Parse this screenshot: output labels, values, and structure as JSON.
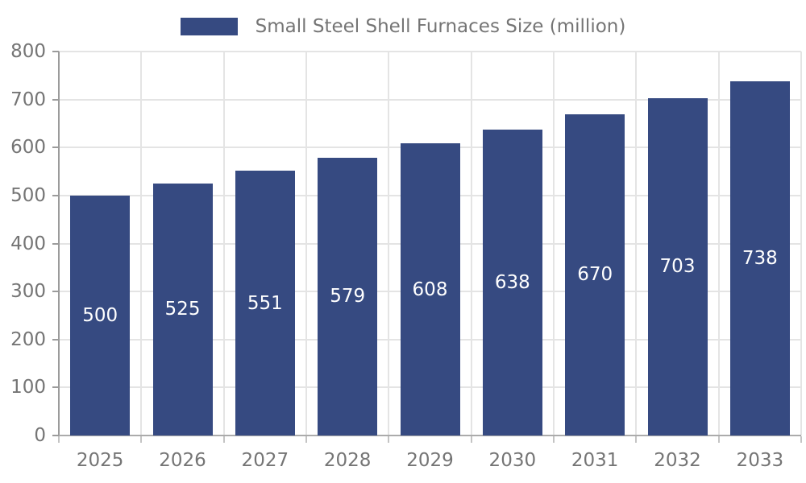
{
  "chart_data": {
    "type": "bar",
    "title": "Small Steel Shell Furnaces Size (million)",
    "legend": {
      "label": "Small Steel Shell Furnaces Size (million)",
      "position": "top-center"
    },
    "categories": [
      "2025",
      "2026",
      "2027",
      "2028",
      "2029",
      "2030",
      "2031",
      "2032",
      "2033"
    ],
    "series": [
      {
        "name": "Small Steel Shell Furnaces Size (million)",
        "values": [
          500,
          525,
          551,
          579,
          608,
          638,
          670,
          703,
          738
        ]
      }
    ],
    "xlabel": "",
    "ylabel": "",
    "ylim": [
      0,
      800
    ],
    "ytick_step": 100,
    "ytick_labels": [
      "0",
      "100",
      "200",
      "300",
      "400",
      "500",
      "600",
      "700",
      "800"
    ],
    "grid": true,
    "value_labels_shown": true,
    "value_label_position": "inside-center",
    "colors": {
      "bar": "#364A81",
      "value_label": "#FFFFFF",
      "axis_text": "#757575",
      "grid_line": "#E4E4E4",
      "axis_line": "#9B9B9B"
    }
  }
}
